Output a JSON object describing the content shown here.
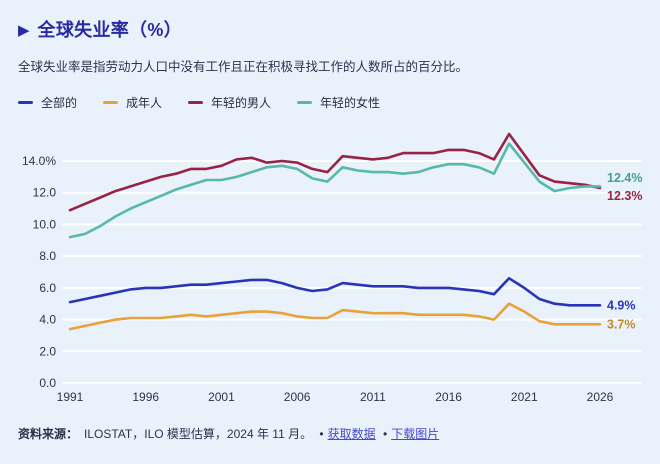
{
  "header": {
    "marker": "▶",
    "title": "全球失业率（%）",
    "subtitle": "全球失业率是指劳动力人口中没有工作且正在积极寻找工作的人数所占的百分比。"
  },
  "chart_data": {
    "type": "line",
    "title": "全球失业率（%）",
    "x_label": "",
    "y_label": "",
    "ylim": [
      0,
      14
    ],
    "grid": true,
    "legend_position": "top",
    "years": [
      1991,
      1992,
      1993,
      1994,
      1995,
      1996,
      1997,
      1998,
      1999,
      2000,
      2001,
      2002,
      2003,
      2004,
      2005,
      2006,
      2007,
      2008,
      2009,
      2010,
      2011,
      2012,
      2013,
      2014,
      2015,
      2016,
      2017,
      2018,
      2019,
      2020,
      2021,
      2022,
      2023,
      2024,
      2025,
      2026
    ],
    "yticks": [
      {
        "label": "14.0%",
        "value": 14
      },
      {
        "label": "12.0",
        "value": 12
      },
      {
        "label": "10.0",
        "value": 10
      },
      {
        "label": "8.0",
        "value": 8
      },
      {
        "label": "6.0",
        "value": 6
      },
      {
        "label": "4.0",
        "value": 4
      },
      {
        "label": "2.0",
        "value": 2
      },
      {
        "label": "0.0",
        "value": 0
      }
    ],
    "xticks": [
      {
        "label": "1991",
        "value": 1991
      },
      {
        "label": "1996",
        "value": 1996
      },
      {
        "label": "2001",
        "value": 2001
      },
      {
        "label": "2006",
        "value": 2006
      },
      {
        "label": "2011",
        "value": 2011
      },
      {
        "label": "2016",
        "value": 2016
      },
      {
        "label": "2021",
        "value": 2021
      },
      {
        "label": "2026",
        "value": 2026
      }
    ],
    "series": [
      {
        "id": "total",
        "name": "全部的",
        "color": "#2935b8",
        "label_color": "#2935b8",
        "end_label": "4.9%",
        "values": [
          5.1,
          5.3,
          5.5,
          5.7,
          5.9,
          6.0,
          6.0,
          6.1,
          6.2,
          6.2,
          6.3,
          6.4,
          6.5,
          6.5,
          6.3,
          6.0,
          5.8,
          5.9,
          6.3,
          6.2,
          6.1,
          6.1,
          6.1,
          6.0,
          6.0,
          6.0,
          5.9,
          5.8,
          5.6,
          6.6,
          6.0,
          5.3,
          5.0,
          4.9,
          4.9,
          4.9
        ]
      },
      {
        "id": "adults",
        "name": "成年人",
        "color": "#e9a23b",
        "label_color": "#c8872e",
        "end_label": "3.7%",
        "values": [
          3.4,
          3.6,
          3.8,
          4.0,
          4.1,
          4.1,
          4.1,
          4.2,
          4.3,
          4.2,
          4.3,
          4.4,
          4.5,
          4.5,
          4.4,
          4.2,
          4.1,
          4.1,
          4.6,
          4.5,
          4.4,
          4.4,
          4.4,
          4.3,
          4.3,
          4.3,
          4.3,
          4.2,
          4.0,
          5.0,
          4.5,
          3.9,
          3.7,
          3.7,
          3.7,
          3.7
        ]
      },
      {
        "id": "young-men",
        "name": "年轻的男人",
        "color": "#992347",
        "label_color": "#992347",
        "end_label": "12.3%",
        "values": [
          10.9,
          11.3,
          11.7,
          12.1,
          12.4,
          12.7,
          13.0,
          13.2,
          13.5,
          13.5,
          13.7,
          14.1,
          14.2,
          13.9,
          14.0,
          13.9,
          13.5,
          13.3,
          14.3,
          14.2,
          14.1,
          14.2,
          14.5,
          14.5,
          14.5,
          14.7,
          14.7,
          14.5,
          14.1,
          15.7,
          14.4,
          13.1,
          12.7,
          12.6,
          12.5,
          12.3
        ]
      },
      {
        "id": "young-women",
        "name": "年轻的女性",
        "color": "#57b9a8",
        "label_color": "#41a08f",
        "end_label": "12.4%",
        "values": [
          9.2,
          9.4,
          9.9,
          10.5,
          11.0,
          11.4,
          11.8,
          12.2,
          12.5,
          12.8,
          12.8,
          13.0,
          13.3,
          13.6,
          13.7,
          13.5,
          12.9,
          12.7,
          13.6,
          13.4,
          13.3,
          13.3,
          13.2,
          13.3,
          13.6,
          13.8,
          13.8,
          13.6,
          13.2,
          15.1,
          13.9,
          12.7,
          12.1,
          12.3,
          12.4,
          12.4
        ]
      }
    ]
  },
  "footer": {
    "source_label": "资料来源：",
    "source_text": "ILOSTAT，ILO 模型估算，2024 年 11 月。",
    "sep1": "•",
    "link1": "获取数据",
    "sep2": "•",
    "link2": "下载图片"
  }
}
